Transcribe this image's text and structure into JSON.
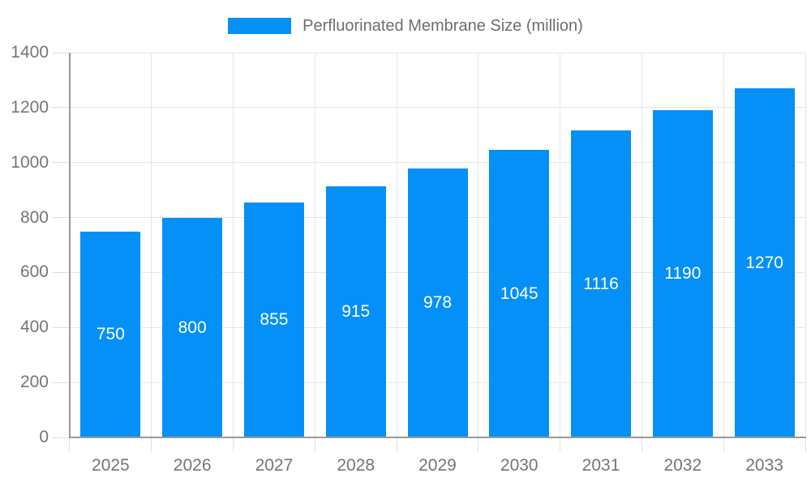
{
  "chart": {
    "colors": {
      "bar": "#0590f8",
      "grid": "#e6e6e6",
      "tick": "#dedede",
      "axis": "#999999",
      "axis_label": "#757575",
      "legend_text": "#6e6e6e",
      "bar_label": "#ffffff",
      "background": "#ffffff"
    }
  },
  "chart_data": {
    "type": "bar",
    "title": "Perfluorinated Membrane Size (million)",
    "categories": [
      "2025",
      "2026",
      "2027",
      "2028",
      "2029",
      "2030",
      "2031",
      "2032",
      "2033"
    ],
    "values": [
      750,
      800,
      855,
      915,
      978,
      1045,
      1116,
      1190,
      1270
    ],
    "xlabel": "",
    "ylabel": "",
    "ylim": [
      0,
      1400
    ],
    "yticks": [
      0,
      200,
      400,
      600,
      800,
      1000,
      1200,
      1400
    ],
    "grid": true,
    "legend_position": "top",
    "legend_label": "Perfluorinated Membrane Size (million)"
  }
}
